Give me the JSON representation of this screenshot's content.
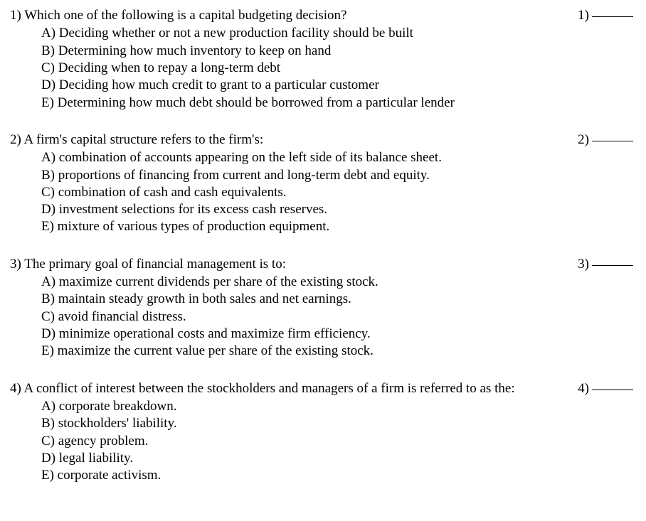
{
  "questions": [
    {
      "number": "1)",
      "text": "Which one of the following is a capital budgeting decision?",
      "answer_label": "1)",
      "options": [
        "A) Deciding whether or not a new production facility should be built",
        "B) Determining how much inventory to keep on hand",
        "C) Deciding when to repay a long-term debt",
        "D) Deciding how much credit to grant to a particular customer",
        "E) Determining how much debt should be borrowed from a particular lender"
      ]
    },
    {
      "number": "2)",
      "text": "A firm's capital structure refers to the firm's:",
      "answer_label": "2)",
      "options": [
        "A) combination of accounts appearing on the left side of its balance sheet.",
        "B) proportions of financing from current and long-term debt and equity.",
        "C) combination of cash and cash equivalents.",
        "D) investment selections for its excess cash reserves.",
        "E) mixture of various types of production equipment."
      ]
    },
    {
      "number": "3)",
      "text": "The primary goal of financial management is to:",
      "answer_label": "3)",
      "options": [
        "A) maximize current dividends per share of the existing stock.",
        "B) maintain steady growth in both sales and net earnings.",
        "C) avoid financial distress.",
        "D) minimize operational costs and maximize firm efficiency.",
        "E) maximize the current value per share of the existing stock."
      ]
    },
    {
      "number": "4)",
      "text": "A conflict of interest between the stockholders and managers of a firm is referred to as the:",
      "answer_label": "4)",
      "options": [
        "A) corporate breakdown.",
        "B) stockholders' liability.",
        "C) agency problem.",
        "D) legal liability.",
        "E) corporate activism."
      ]
    }
  ]
}
